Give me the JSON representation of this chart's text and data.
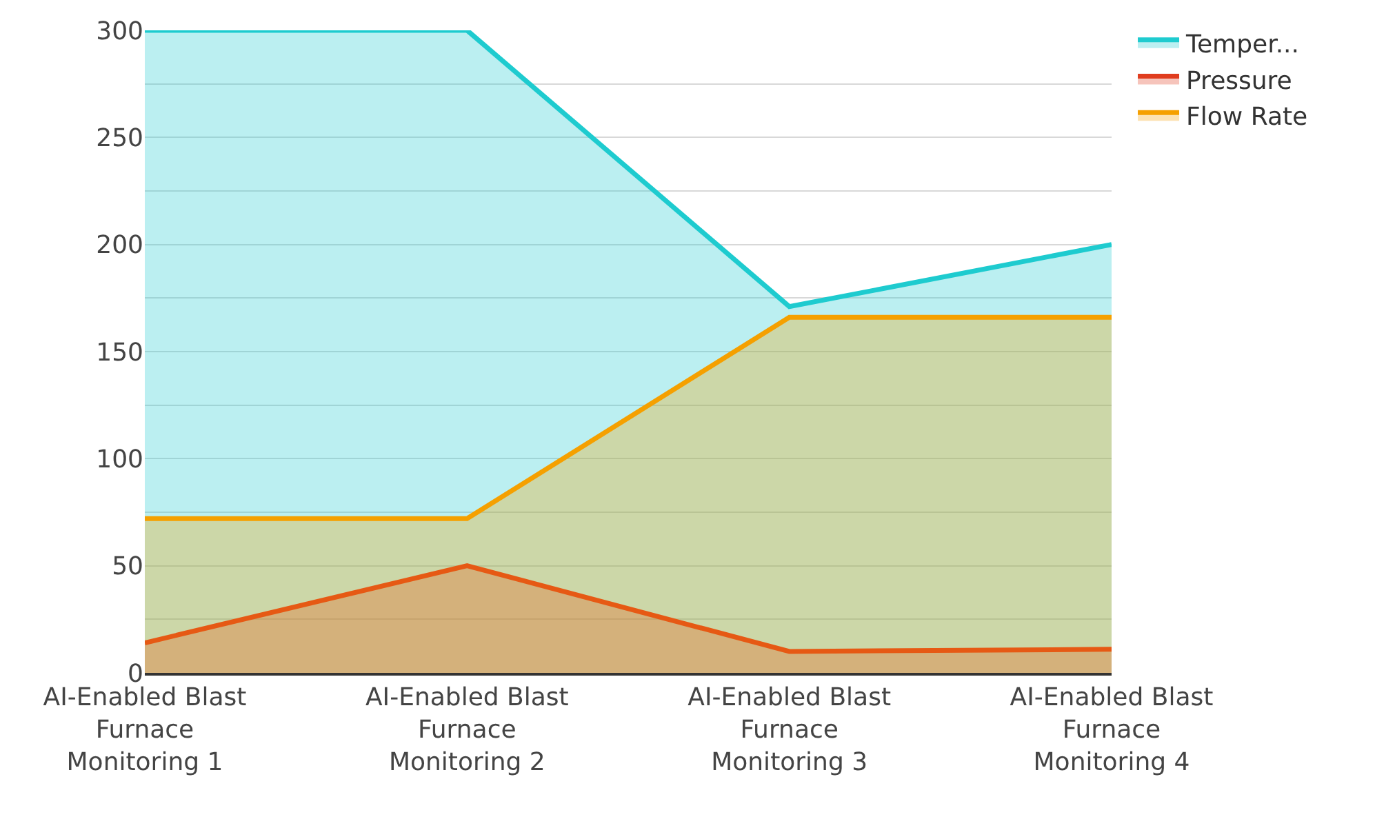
{
  "chart_data": {
    "type": "area",
    "categories": [
      "AI-Enabled Blast Furnace Monitoring 1",
      "AI-Enabled Blast Furnace Monitoring 2",
      "AI-Enabled Blast Furnace Monitoring 3",
      "AI-Enabled Blast Furnace Monitoring 4"
    ],
    "series": [
      {
        "name": "Temper...",
        "color": "#1ecbcf",
        "values": [
          300,
          300,
          171,
          200
        ]
      },
      {
        "name": "Pressure",
        "color": "#e03c1e",
        "values": [
          14,
          50,
          10,
          11
        ]
      },
      {
        "name": "Flow Rate",
        "color": "#f5a000",
        "values": [
          72,
          72,
          166,
          166
        ]
      }
    ],
    "ylim": [
      0,
      300
    ],
    "yticks": [
      0,
      {
        "value": 25,
        "label": null
      },
      50,
      {
        "value": 75,
        "label": null
      },
      100,
      {
        "value": 125,
        "label": null
      },
      150,
      {
        "value": 175,
        "label": null
      },
      200,
      {
        "value": 225,
        "label": null
      },
      250,
      {
        "value": 275,
        "label": null
      },
      300
    ],
    "grid": "y",
    "legend": "top right"
  }
}
